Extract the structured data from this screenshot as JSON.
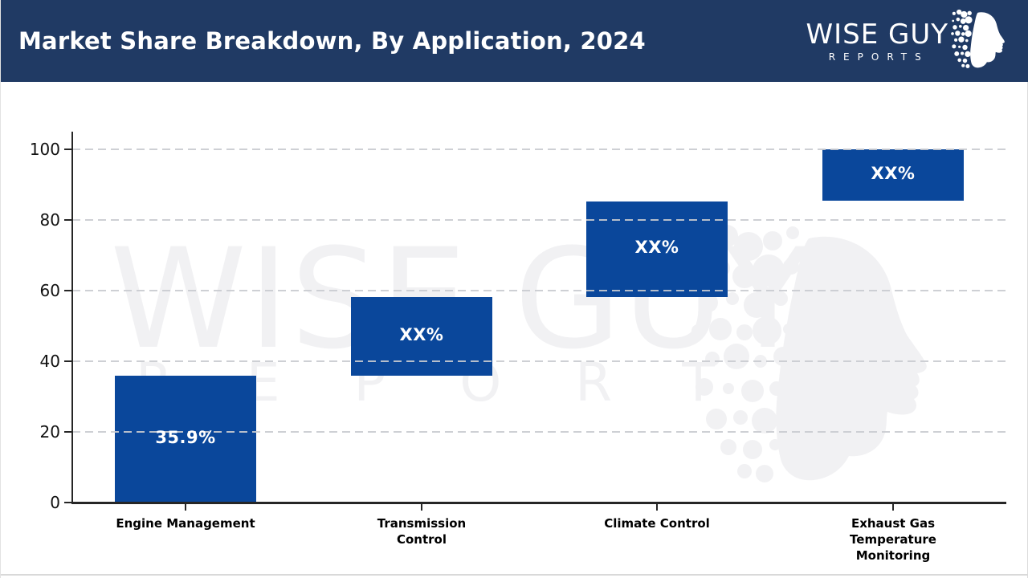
{
  "header": {
    "title": "Market Share Breakdown, By Application, 2024",
    "background_color": "#203a64",
    "brand": {
      "name": "WISE GUY",
      "sub": "REPORTS"
    }
  },
  "watermark": {
    "line1": "WISE GUY",
    "line2": "REPORTS"
  },
  "chart_data": {
    "type": "bar",
    "subtype": "floating-segment-waterfall",
    "title": "Market Share Breakdown, By Application, 2024",
    "categories": [
      "Engine Management",
      "Transmission Control",
      "Climate Control",
      "Exhaust Gas Temperature Monitoring"
    ],
    "category_label_lines": [
      [
        "Engine Management"
      ],
      [
        "Transmission",
        "Control"
      ],
      [
        "Climate Control"
      ],
      [
        "Exhaust Gas",
        "Temperature",
        "Monitoring"
      ]
    ],
    "series": [
      {
        "name": "Market share (%)",
        "segments": [
          {
            "category": "Engine Management",
            "start": 0,
            "end": 35.9,
            "label": "35.9%"
          },
          {
            "category": "Transmission Control",
            "start": 35.9,
            "end": 58.2,
            "label": "XX%"
          },
          {
            "category": "Climate Control",
            "start": 58.2,
            "end": 85.3,
            "label": "XX%"
          },
          {
            "category": "Exhaust Gas Temperature Monitoring",
            "start": 85.5,
            "end": 100,
            "label": "XX%"
          }
        ]
      }
    ],
    "yticks": [
      0,
      20,
      40,
      60,
      80,
      100
    ],
    "ylim": [
      0,
      104.8
    ],
    "grid": {
      "horizontal": true,
      "style": "dashed",
      "color": "#d0d2d6",
      "drawn_over_bars": true
    },
    "bar_color": "#0a479b",
    "value_label_color": "#ffffff",
    "legend": null
  }
}
